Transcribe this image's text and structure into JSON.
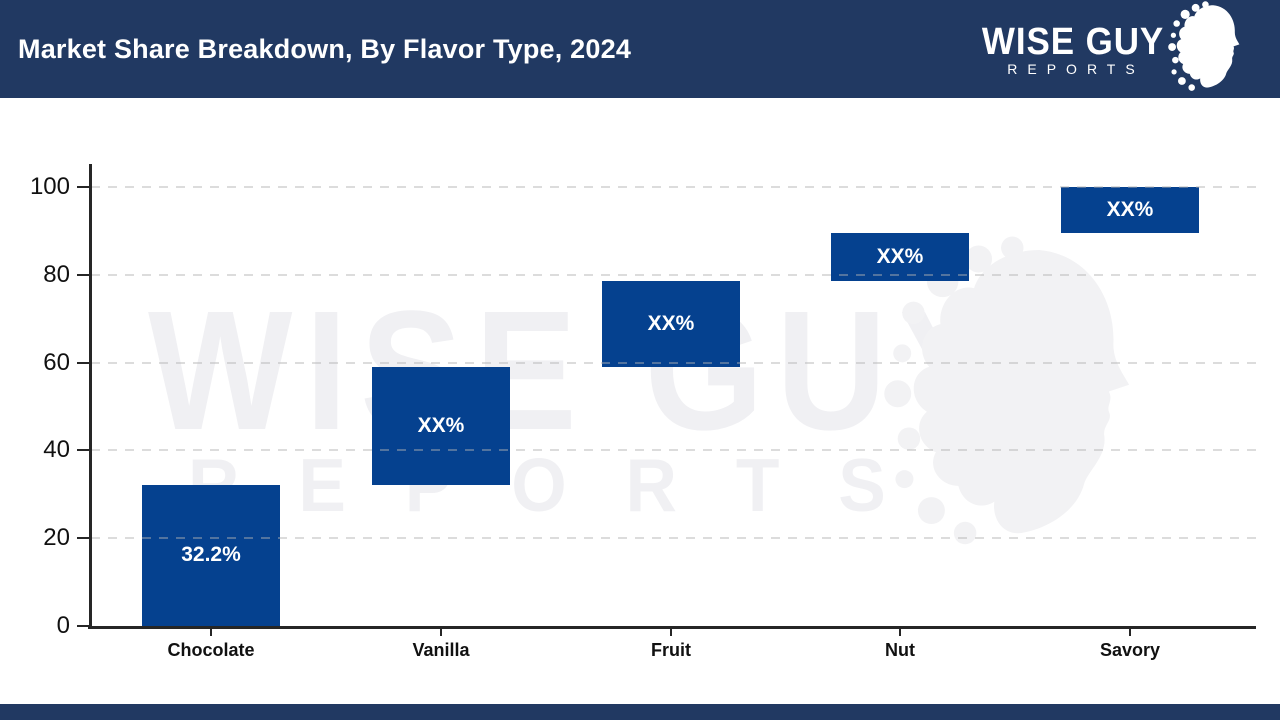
{
  "header": {
    "title": "Market Share Breakdown, By Flavor Type, 2024",
    "logo": {
      "line1": "WISE GUY",
      "line2": "REPORTS"
    }
  },
  "watermark": {
    "line1": "WISE GUY",
    "line2": "REPORTS"
  },
  "chart_data": {
    "type": "bar",
    "subtype": "waterfall",
    "title": "Market Share Breakdown, By Flavor Type, 2024",
    "categories": [
      "Chocolate",
      "Vanilla",
      "Fruit",
      "Nut",
      "Savory"
    ],
    "bars": [
      {
        "category": "Chocolate",
        "label": "32.2%",
        "start": 0,
        "end": 32.2
      },
      {
        "category": "Vanilla",
        "label": "XX%",
        "start": 32.2,
        "end": 59
      },
      {
        "category": "Fruit",
        "label": "XX%",
        "start": 59,
        "end": 78.5
      },
      {
        "category": "Nut",
        "label": "XX%",
        "start": 78.5,
        "end": 89.5
      },
      {
        "category": "Savory",
        "label": "XX%",
        "start": 89.5,
        "end": 100
      }
    ],
    "yticks": [
      0,
      20,
      40,
      60,
      80,
      100
    ],
    "ylim": [
      0,
      105
    ],
    "grid": "dashed horizontal gridlines at y ticks",
    "legend": "none",
    "xlabel": "",
    "ylabel": ""
  },
  "colors": {
    "header_bg": "#213962",
    "footer_bg": "#213962",
    "bar": "#05418f",
    "bar_label": "#ffffff",
    "axis": "#262626",
    "watermark": "#f0f0f3"
  }
}
